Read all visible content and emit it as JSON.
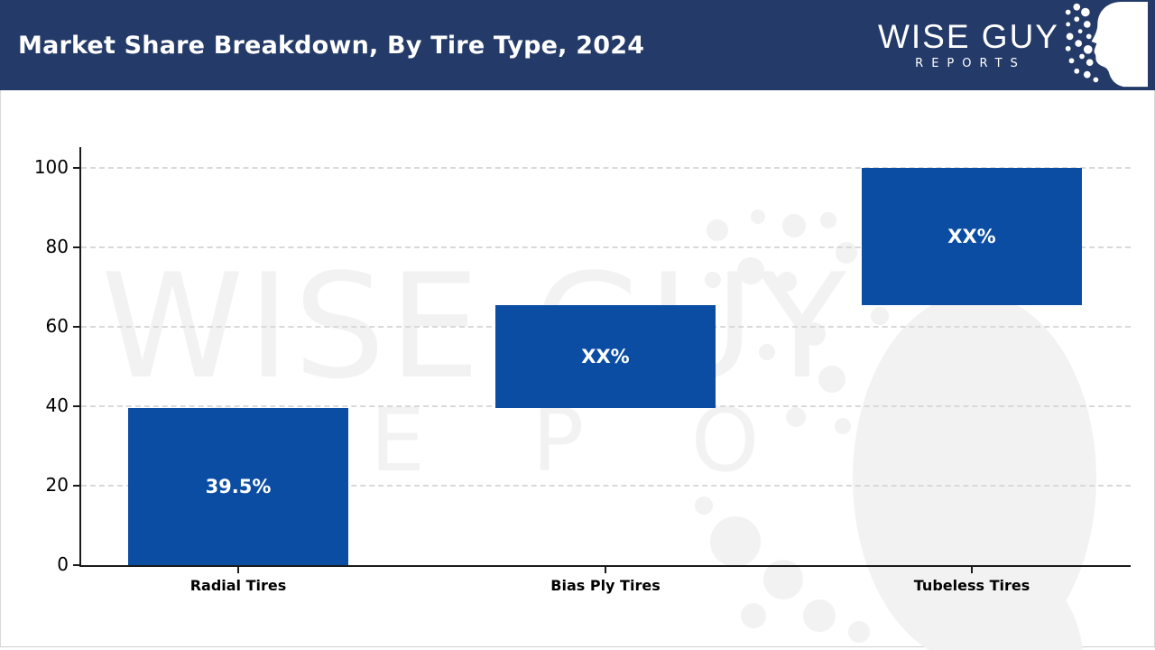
{
  "page": {
    "background": "#ffffff",
    "frame_color": "#d9d9d9"
  },
  "header": {
    "title": "Market Share Breakdown, By Tire Type, 2024",
    "background": "#243a68",
    "text_color": "#ffffff",
    "logo": {
      "line1": "WISE GUY",
      "line2": "REPORTS"
    }
  },
  "watermark": {
    "line1": "WISE GUY",
    "line2": "R E P O R T S",
    "color": "#f2f2f2"
  },
  "chart_data": {
    "type": "bar",
    "subtype": "floating-segment-waterfall",
    "title": "Market Share Breakdown, By Tire Type, 2024",
    "categories": [
      "Radial Tires",
      "Bias Ply Tires",
      "Tubeless Tires"
    ],
    "segments": [
      {
        "category": "Radial Tires",
        "start": 0,
        "end": 39.5,
        "label": "39.5%"
      },
      {
        "category": "Bias Ply Tires",
        "start": 39.5,
        "end": 65.5,
        "label": "XX%"
      },
      {
        "category": "Tubeless Tires",
        "start": 65.5,
        "end": 100,
        "label": "XX%"
      }
    ],
    "xlabel": "",
    "ylabel": "",
    "ylim": [
      0,
      100
    ],
    "yticks": [
      0,
      20,
      40,
      60,
      80,
      100
    ],
    "grid": "horizontal-dashed",
    "legend": "none",
    "bar_color": "#0b4da3",
    "value_label_color": "#ffffff",
    "axis_color": "#1a1a1a",
    "gridline_color": "#d9d9d9"
  }
}
